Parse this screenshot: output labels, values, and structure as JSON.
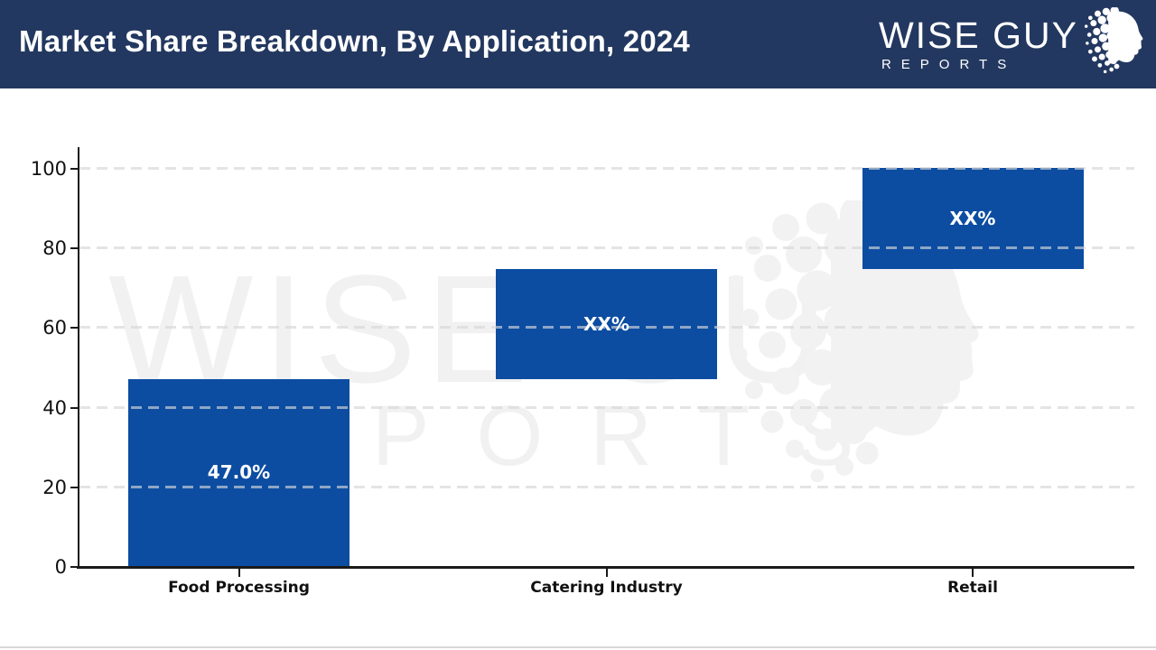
{
  "header": {
    "title": "Market Share Breakdown, By Application, 2024"
  },
  "logo": {
    "brand": "WISE GUY",
    "sub": "REPORTS"
  },
  "watermark": {
    "brand": "WISE GUY",
    "sub": "REPORTS"
  },
  "chart_data": {
    "type": "bar",
    "subtype": "floating-segment bars (waterfall-style share breakdown)",
    "title": "Market Share Breakdown, By Application, 2024",
    "categories": [
      "Food Processing",
      "Catering Industry",
      "Retail"
    ],
    "segments": [
      {
        "category": "Food Processing",
        "from": 0,
        "to": 47.0,
        "label": "47.0%"
      },
      {
        "category": "Catering Industry",
        "from": 47.0,
        "to": 74.6,
        "label": "XX%"
      },
      {
        "category": "Retail",
        "from": 74.6,
        "to": 100,
        "label": "XX%"
      }
    ],
    "xlabel": "",
    "ylabel": "",
    "ylim": [
      0,
      105
    ],
    "yticks": [
      0,
      20,
      40,
      60,
      80,
      100
    ],
    "grid": "horizontal dashed",
    "legend": "none",
    "bar_color": "#0c4da2",
    "bar_label_color": "#ffffff"
  },
  "colors": {
    "header_bg": "#233860",
    "bar": "#0c4da2",
    "axis": "#1a1a1a",
    "gridline": "#d6d6d6",
    "watermark": "#f1f1f1",
    "bottom_line": "#d9d9d9"
  }
}
